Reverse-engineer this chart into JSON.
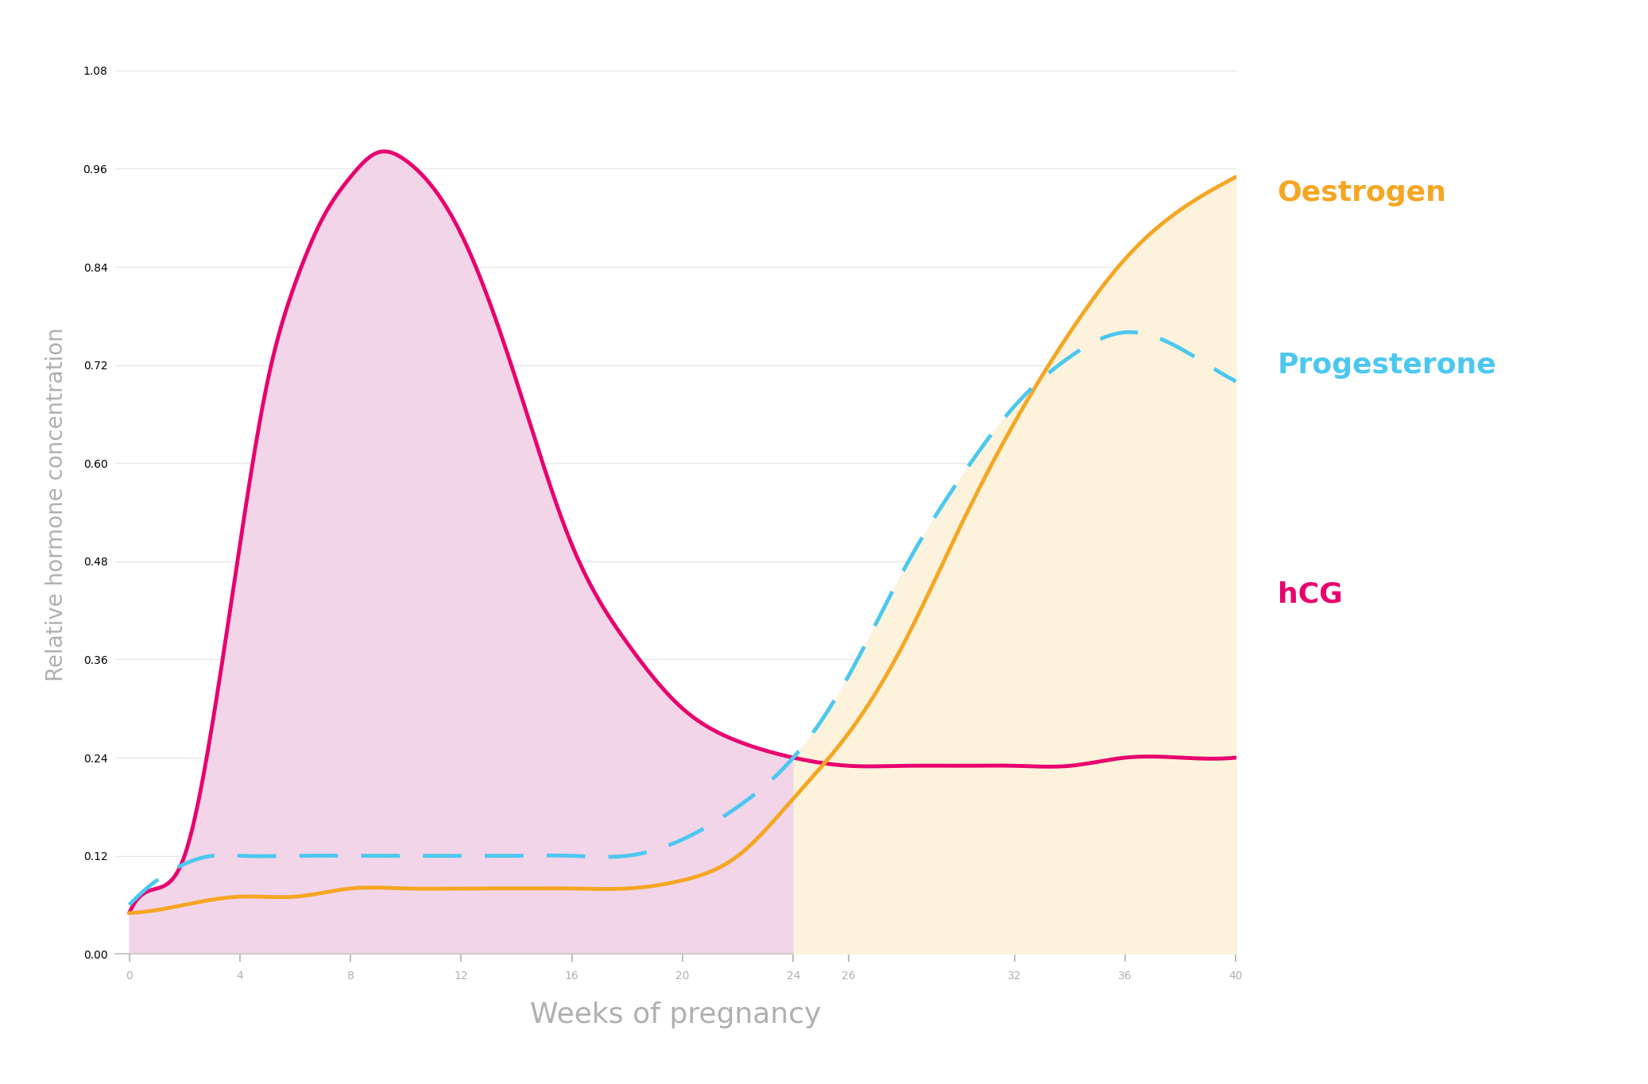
{
  "xlabel": "Weeks of pregnancy",
  "ylabel": "Relative hormone concentration",
  "xticks": [
    0,
    4,
    8,
    12,
    16,
    20,
    24,
    26,
    32,
    36,
    40
  ],
  "background_color": "#ffffff",
  "grid_color": "#e8e8e8",
  "hcg_color": "#e8006f",
  "oestrogen_color": "#f5a623",
  "progesterone_color": "#4cc8f0",
  "hcg_fill_color": "#f2d5e8",
  "oestrogen_fill_color": "#fdf3dc",
  "line_width": 3.5,
  "label_fontsize": 26,
  "tick_fontsize": 22,
  "ylabel_fontsize": 20,
  "annotation_fontsize": 26,
  "hcg_x": [
    0,
    1,
    2,
    3,
    4,
    5,
    6,
    7,
    8,
    9,
    10,
    12,
    14,
    16,
    18,
    20,
    22,
    24,
    26,
    28,
    30,
    32,
    34,
    36,
    38,
    40
  ],
  "hcg_y": [
    0.05,
    0.08,
    0.12,
    0.28,
    0.5,
    0.7,
    0.82,
    0.9,
    0.95,
    0.98,
    0.97,
    0.88,
    0.7,
    0.5,
    0.38,
    0.3,
    0.26,
    0.24,
    0.23,
    0.23,
    0.23,
    0.23,
    0.23,
    0.24,
    0.24,
    0.24
  ],
  "oestrogen_x": [
    0,
    2,
    4,
    6,
    8,
    10,
    12,
    14,
    16,
    18,
    20,
    22,
    24,
    26,
    28,
    30,
    32,
    34,
    36,
    38,
    40
  ],
  "oestrogen_y": [
    0.05,
    0.06,
    0.07,
    0.07,
    0.08,
    0.08,
    0.08,
    0.08,
    0.08,
    0.08,
    0.09,
    0.12,
    0.19,
    0.27,
    0.38,
    0.52,
    0.65,
    0.76,
    0.85,
    0.91,
    0.95
  ],
  "progesterone_x": [
    0,
    1,
    2,
    3,
    4,
    6,
    8,
    10,
    12,
    14,
    16,
    18,
    20,
    22,
    24,
    26,
    28,
    30,
    32,
    34,
    36,
    38,
    40
  ],
  "progesterone_y": [
    0.06,
    0.09,
    0.11,
    0.12,
    0.12,
    0.12,
    0.12,
    0.12,
    0.12,
    0.12,
    0.12,
    0.12,
    0.14,
    0.18,
    0.24,
    0.34,
    0.47,
    0.58,
    0.67,
    0.73,
    0.76,
    0.74,
    0.7
  ]
}
